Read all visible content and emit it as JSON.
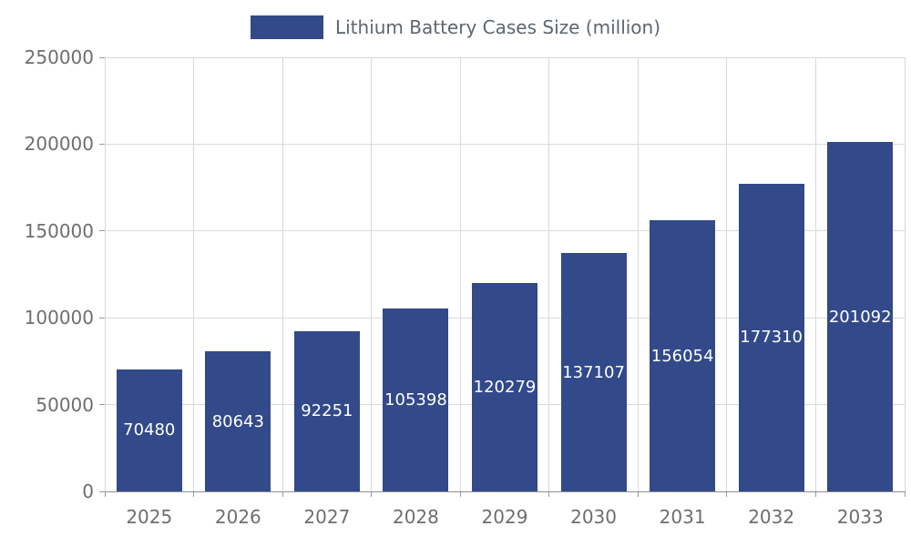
{
  "chart_data": {
    "type": "bar",
    "title": "Lithium Battery Cases Size (million)",
    "categories": [
      "2025",
      "2026",
      "2027",
      "2028",
      "2029",
      "2030",
      "2031",
      "2032",
      "2033"
    ],
    "values": [
      70480,
      80643,
      92251,
      105398,
      120279,
      137107,
      156054,
      177310,
      201092
    ],
    "xlabel": "",
    "ylabel": "",
    "ylim": [
      0,
      250000
    ],
    "y_ticks": [
      0,
      50000,
      100000,
      150000,
      200000,
      250000
    ],
    "grid": true,
    "legend_position": "top-center",
    "value_labels": "inside-center",
    "colors": {
      "bar": "#32498a",
      "grid": "#d9d9d9",
      "axis": "#909090",
      "tick": "#999999",
      "axis_text": "#6e6e6e",
      "value_label_text": "#ffffff",
      "legend_text": "#5b6670"
    }
  }
}
